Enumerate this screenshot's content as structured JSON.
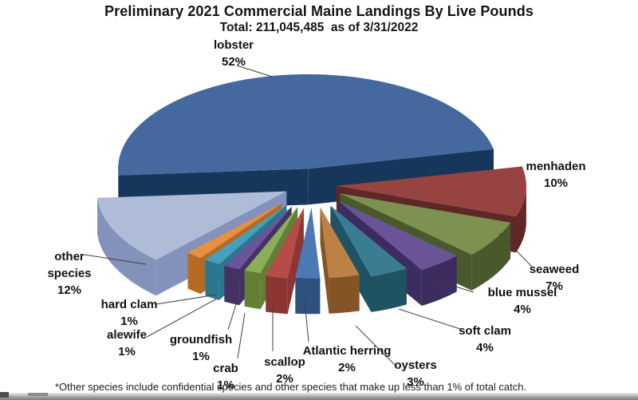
{
  "header": {
    "title": "Preliminary 2021 Commercial Maine Landings By Live Pounds",
    "subtitle": "Total: 211,045,485  as of 3/31/2022"
  },
  "footnote": "*Other species include confidential species and other species that make up less than 1% of total catch.",
  "window": {
    "bottom_edge_color": "#9b9b98"
  },
  "chart_data": {
    "type": "pie",
    "style": "3d-exploded",
    "title": "Preliminary 2021 Commercial Maine Landings By Live Pounds",
    "total_live_pounds": "211,045,485",
    "as_of_date": "3/31/2022",
    "unit": "percent of total live pounds",
    "legend": "none",
    "labels_show": "category name + percent",
    "slices": [
      {
        "id": "lobster",
        "label": "lobster",
        "pct": 52,
        "color_top": "#45699E",
        "color_side": "#16365C"
      },
      {
        "id": "menhaden",
        "label": "menhaden",
        "pct": 10,
        "color_top": "#964341",
        "color_side": "#5D2826"
      },
      {
        "id": "seaweed",
        "label": "seaweed",
        "pct": 7,
        "color_top": "#7D9150",
        "color_side": "#4A592C"
      },
      {
        "id": "blue_mussel",
        "label": "blue mussel",
        "pct": 4,
        "color_top": "#6A5497",
        "color_side": "#3D2C60"
      },
      {
        "id": "soft_clam",
        "label": "soft clam",
        "pct": 4,
        "color_top": "#3A7D93",
        "color_side": "#1F5263"
      },
      {
        "id": "oysters",
        "label": "oysters",
        "pct": 3,
        "color_top": "#BE8145",
        "color_side": "#855424"
      },
      {
        "id": "atlantic_herring",
        "label": "Atlantic herring",
        "pct": 2,
        "color_top": "#4C78B4",
        "color_side": "#2F517E"
      },
      {
        "id": "scallop",
        "label": "scallop",
        "pct": 2,
        "color_top": "#B74B47",
        "color_side": "#8C3532"
      },
      {
        "id": "crab",
        "label": "crab",
        "pct": 1,
        "color_top": "#8BAF58",
        "color_side": "#617F35"
      },
      {
        "id": "groundfish",
        "label": "groundfish",
        "pct": 1,
        "color_top": "#6B549A",
        "color_side": "#443264"
      },
      {
        "id": "alewife",
        "label": "alewife",
        "pct": 1,
        "color_top": "#43A1BD",
        "color_side": "#2A7890"
      },
      {
        "id": "hard_clam",
        "label": "hard clam",
        "pct": 1,
        "color_top": "#E79040",
        "color_side": "#B66A22"
      },
      {
        "id": "other_species",
        "label": "other species",
        "pct": 12,
        "color_top": "#AEBCD8",
        "color_side": "#8292BA"
      }
    ]
  }
}
